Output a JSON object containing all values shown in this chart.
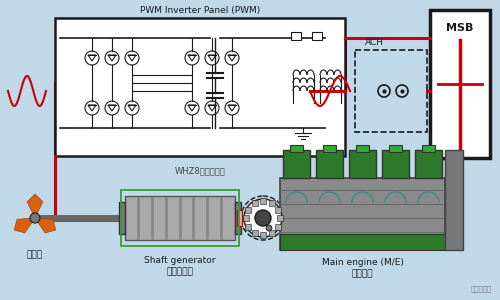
{
  "bg_color": "#c0d8e8",
  "title": "PWM Inverter Panel (PWM)",
  "pwm_label": "WHZ8轴发控制箱",
  "msb_label": "MSB",
  "ach_label": "ACH",
  "propeller_label": "螺旋桨",
  "generator_label": "Shaft generator\n同步发电机",
  "engine_label": "Main engine (M/E)\n主柴油机",
  "watermark": "图解船舶网",
  "red_color": "#cc0000",
  "dark_color": "#1a1a1a",
  "green_color": "#2d7a2d",
  "orange_color": "#d96010",
  "gray_color": "#888888",
  "white_color": "#ffffff"
}
